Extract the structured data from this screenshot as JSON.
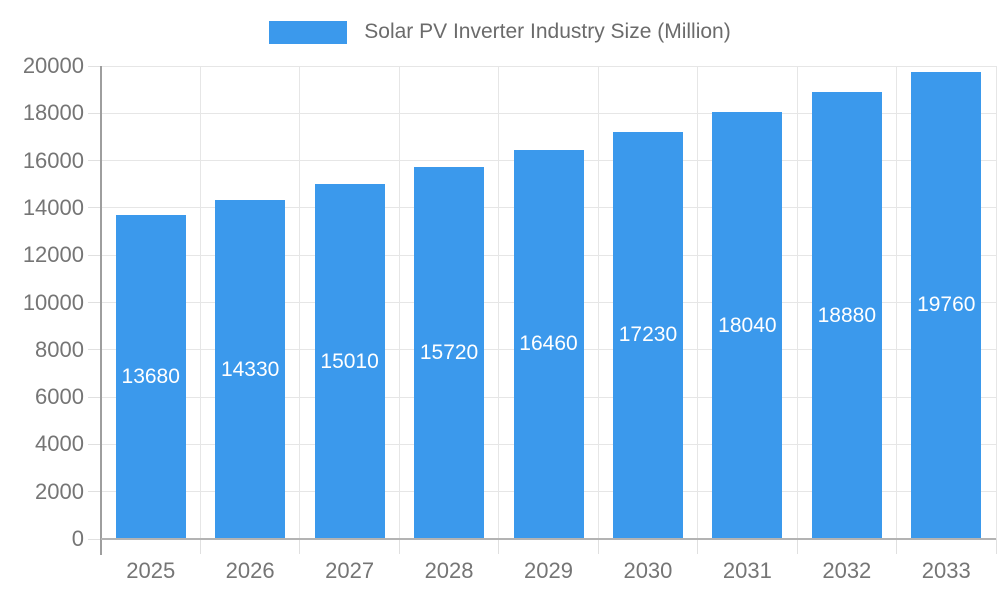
{
  "chart_data": {
    "type": "bar",
    "title": "Solar PV Inverter Industry Size (Million)",
    "legend": {
      "position": "top",
      "entries": [
        {
          "label": "Solar PV Inverter Industry Size (Million)",
          "color": "#3B99EC"
        }
      ]
    },
    "categories": [
      "2025",
      "2026",
      "2027",
      "2028",
      "2029",
      "2030",
      "2031",
      "2032",
      "2033"
    ],
    "series": [
      {
        "name": "Solar PV Inverter Industry Size (Million)",
        "values": [
          13680,
          14330,
          15010,
          15720,
          16460,
          17230,
          18040,
          18880,
          19760
        ]
      }
    ],
    "value_labels": [
      "13680",
      "14330",
      "15010",
      "15720",
      "16460",
      "17230",
      "18040",
      "18880",
      "19760"
    ],
    "xlabel": "",
    "ylabel": "",
    "ylim": [
      0,
      20000
    ],
    "ytick_step": 2000,
    "ytick_labels": [
      "0",
      "2000",
      "4000",
      "6000",
      "8000",
      "10000",
      "12000",
      "14000",
      "16000",
      "18000",
      "20000"
    ],
    "grid": true,
    "colors": {
      "bar": "#3B99EC",
      "value_label": "#FFFFFF",
      "axis_text": "#757575",
      "legend_text": "#6B6B6B",
      "gridline": "#E6E6E6",
      "tick": "#E0E0E0",
      "y_axis_line": "#9E9E9E",
      "x_axis_line": "#B3B3B3"
    }
  }
}
